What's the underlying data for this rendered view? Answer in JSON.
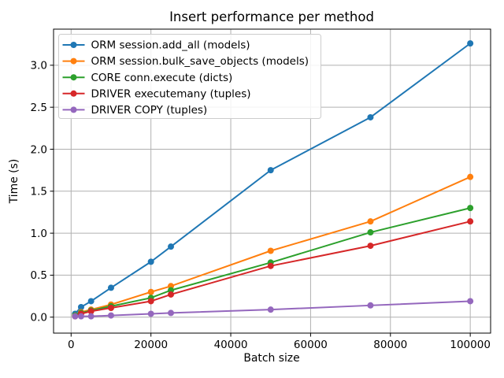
{
  "figure": {
    "background": "#ffffff",
    "grid_color": "#b0b0b0",
    "spine_color": "#000000",
    "legend_border_color": "#cccccc",
    "legend_background": "#ffffff"
  },
  "chart_data": {
    "type": "line",
    "title": "Insert performance per method",
    "xlabel": "Batch size",
    "ylabel": "Time (s)",
    "marker": "o",
    "grid": true,
    "legend_position": "upper left",
    "x": [
      1000,
      2500,
      5000,
      10000,
      20000,
      25000,
      50000,
      75000,
      100000
    ],
    "series": [
      {
        "name": "ORM session.add_all (models)",
        "color": "#1f77b4",
        "values": [
          0.04,
          0.12,
          0.19,
          0.35,
          0.66,
          0.84,
          1.75,
          2.38,
          3.26
        ]
      },
      {
        "name": "ORM session.bulk_save_objects (models)",
        "color": "#ff7f0e",
        "values": [
          0.02,
          0.06,
          0.09,
          0.15,
          0.3,
          0.37,
          0.79,
          1.14,
          1.67
        ]
      },
      {
        "name": "CORE conn.execute (dicts)",
        "color": "#2ca02c",
        "values": [
          0.02,
          0.05,
          0.08,
          0.13,
          0.23,
          0.32,
          0.65,
          1.01,
          1.3
        ]
      },
      {
        "name": "DRIVER executemany (tuples)",
        "color": "#d62728",
        "values": [
          0.01,
          0.04,
          0.07,
          0.11,
          0.19,
          0.27,
          0.61,
          0.85,
          1.14
        ]
      },
      {
        "name": "DRIVER COPY (tuples)",
        "color": "#9467bd",
        "values": [
          0.01,
          0.01,
          0.01,
          0.02,
          0.04,
          0.05,
          0.09,
          0.14,
          0.19
        ]
      }
    ],
    "xticks": [
      0,
      20000,
      40000,
      60000,
      80000,
      100000
    ],
    "xtick_labels": [
      "0",
      "20000",
      "40000",
      "60000",
      "80000",
      "100000"
    ],
    "yticks": [
      0.0,
      0.5,
      1.0,
      1.5,
      2.0,
      2.5,
      3.0
    ],
    "ytick_labels": [
      "0.0",
      "0.5",
      "1.0",
      "1.5",
      "2.0",
      "2.5",
      "3.0"
    ],
    "xlim": [
      -4400,
      105100
    ],
    "ylim": [
      -0.19,
      3.43
    ]
  }
}
